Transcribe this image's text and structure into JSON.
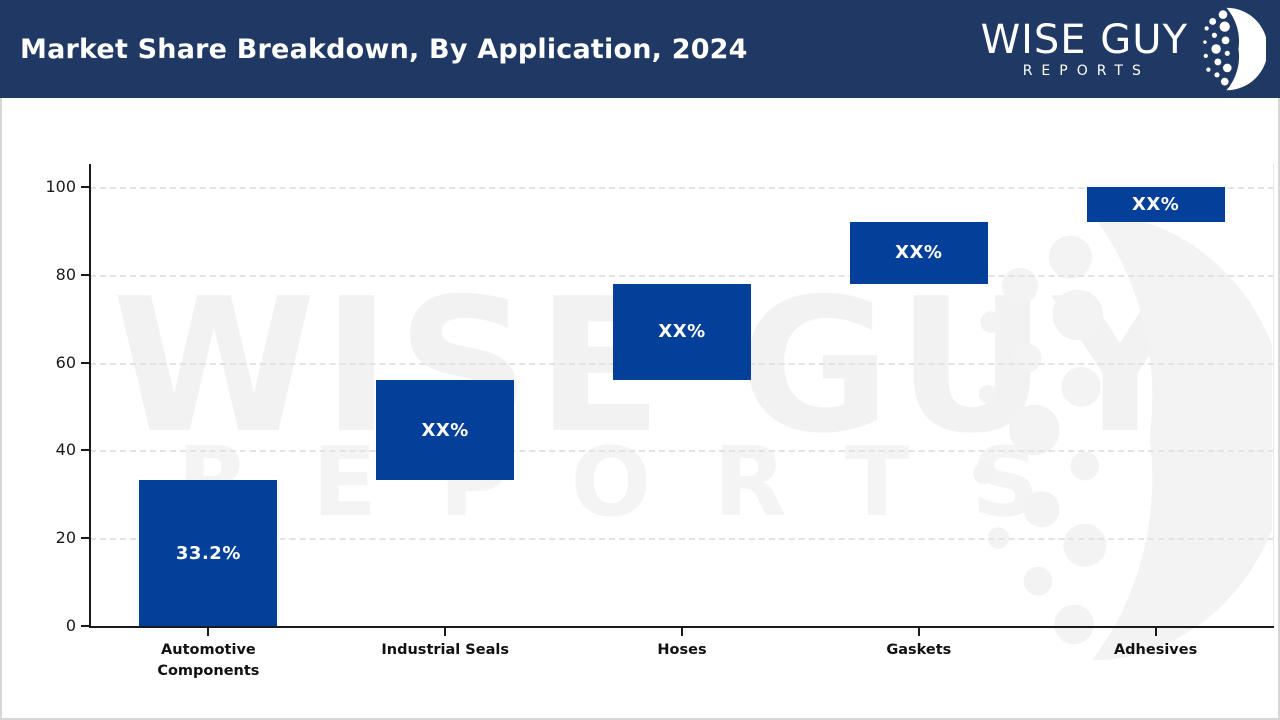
{
  "header": {
    "title": "Market Share Breakdown, By Application, 2024",
    "logo": {
      "line1": "WISE GUY",
      "line2": "REPORTS"
    }
  },
  "watermark": {
    "line1": "WISE GUY",
    "line2": "REPORTS"
  },
  "colors": {
    "header_bg": "#1f3864",
    "bar": "#04409a",
    "grid": "#e3e3e3",
    "axis": "#1a1a1a",
    "bar_label_text": "#ffffff",
    "page_border": "#d6d6d6",
    "watermark": "#f2f2f2"
  },
  "chart_data": {
    "type": "bar",
    "subtype": "waterfall",
    "title": "Market Share Breakdown, By Application, 2024",
    "categories": [
      "Automotive Components",
      "Industrial Seals",
      "Hoses",
      "Gaskets",
      "Adhesives"
    ],
    "segments": [
      {
        "category": "Automotive Components",
        "start": 0,
        "end": 33.2,
        "label": "33.2%"
      },
      {
        "category": "Industrial Seals",
        "start": 33.2,
        "end": 56,
        "label": "XX%"
      },
      {
        "category": "Hoses",
        "start": 56,
        "end": 78,
        "label": "XX%"
      },
      {
        "category": "Gaskets",
        "start": 78,
        "end": 92,
        "label": "XX%"
      },
      {
        "category": "Adhesives",
        "start": 92,
        "end": 100,
        "label": "XX%"
      }
    ],
    "xlabel": "",
    "ylabel": "",
    "yticks": [
      0,
      20,
      40,
      60,
      80,
      100
    ],
    "ylim": [
      0,
      105
    ],
    "grid": true,
    "grid_style": "dashed",
    "legend": "none"
  }
}
